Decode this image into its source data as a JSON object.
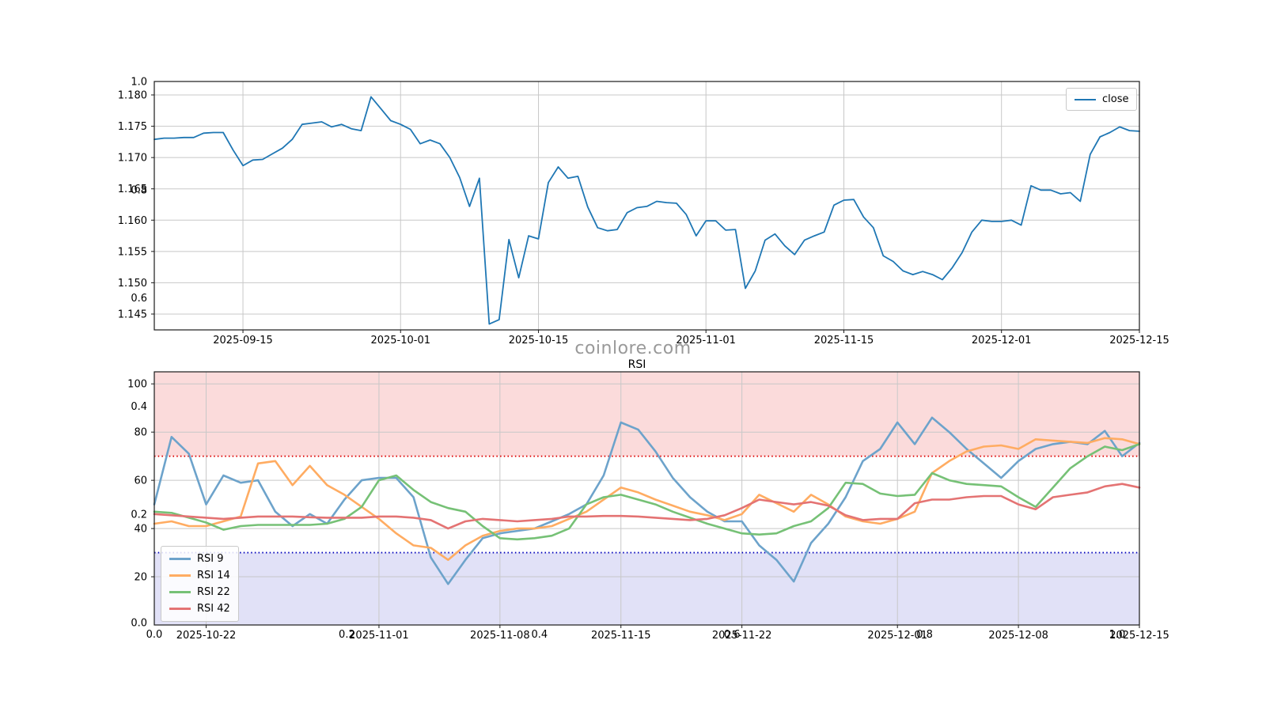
{
  "watermark": {
    "text": "coinlore.com",
    "color": "#999999"
  },
  "colors": {
    "background": "#ffffff",
    "grid": "#c8c8c8",
    "axis": "#1a1a1a",
    "close_line": "#1f77b4",
    "overbought_band": "#fbdbdb",
    "oversold_band": "#e1e1f7",
    "overbought_line": "#dd0000",
    "oversold_line": "#0000bb"
  },
  "overlay_axis": {
    "x_tick_labels": [
      "0.0",
      "0.2",
      "0.4",
      "0.6",
      "0.8",
      "1.0"
    ],
    "y_tick_labels": [
      "1.0",
      "0.8",
      "0.6",
      "0.4",
      "0.2",
      "0.0"
    ]
  },
  "chart_data": [
    {
      "type": "line",
      "title": "",
      "x_unit": "day",
      "x_start_date": "2025-09-06",
      "x_tick_labels": [
        "2025-09-15",
        "2025-10-01",
        "2025-10-15",
        "2025-11-01",
        "2025-11-15",
        "2025-12-01",
        "2025-12-15"
      ],
      "x_tick_index": [
        9,
        25,
        39,
        56,
        70,
        86,
        100
      ],
      "y_tick_values": [
        1.145,
        1.15,
        1.155,
        1.16,
        1.165,
        1.17,
        1.175,
        1.18
      ],
      "y_tick_labels": [
        "1.145",
        "1.150",
        "1.155",
        "1.160",
        "1.165",
        "1.170",
        "1.175",
        "1.180"
      ],
      "ylim": [
        1.14247,
        1.18215
      ],
      "grid": true,
      "legend_position": "upper right",
      "series": [
        {
          "name": "close",
          "color": "#1f77b4",
          "width": 1.8,
          "values": [
            1.1729,
            1.1731,
            1.1731,
            1.1732,
            1.1732,
            1.1739,
            1.174,
            1.174,
            1.1712,
            1.1687,
            1.1696,
            1.1697,
            1.1706,
            1.1715,
            1.1729,
            1.1753,
            1.1755,
            1.1757,
            1.1749,
            1.1753,
            1.1746,
            1.1743,
            1.1797,
            1.1778,
            1.1759,
            1.1753,
            1.1745,
            1.1722,
            1.1728,
            1.1722,
            1.17,
            1.1668,
            1.1622,
            1.1667,
            1.1434,
            1.1441,
            1.1569,
            1.1508,
            1.1575,
            1.157,
            1.166,
            1.1685,
            1.1667,
            1.167,
            1.1621,
            1.1588,
            1.1583,
            1.1585,
            1.1612,
            1.162,
            1.1622,
            1.163,
            1.1628,
            1.1627,
            1.1609,
            1.1575,
            1.1599,
            1.1599,
            1.1584,
            1.1585,
            1.1491,
            1.1519,
            1.1568,
            1.1578,
            1.1559,
            1.1545,
            1.1568,
            1.1575,
            1.1581,
            1.1624,
            1.1632,
            1.1633,
            1.1605,
            1.1588,
            1.1543,
            1.1534,
            1.1519,
            1.1513,
            1.1518,
            1.1513,
            1.1505,
            1.1524,
            1.1548,
            1.1581,
            1.16,
            1.1598,
            1.1598,
            1.16,
            1.1592,
            1.1655,
            1.1648,
            1.1648,
            1.1642,
            1.1644,
            1.163,
            1.1705,
            1.1733,
            1.174,
            1.1749,
            1.1743,
            1.1742
          ]
        }
      ]
    },
    {
      "type": "line",
      "title": "RSI",
      "x_unit": "day",
      "x_start_date": "2025-10-19",
      "x_tick_labels": [
        "2025-10-22",
        "2025-11-01",
        "2025-11-08",
        "2025-11-15",
        "2025-11-22",
        "2025-12-01",
        "2025-12-08",
        "2025-12-15"
      ],
      "x_tick_index": [
        3,
        13,
        20,
        27,
        34,
        43,
        50,
        57
      ],
      "y_tick_values": [
        20,
        40,
        60,
        80,
        100
      ],
      "y_tick_labels": [
        "20",
        "40",
        "60",
        "80",
        "100"
      ],
      "ylim": [
        0,
        105
      ],
      "grid": true,
      "legend_position": "lower left",
      "bands": [
        {
          "name": "overbought",
          "from": 70,
          "to": 105,
          "color": "#fbdbdb"
        },
        {
          "name": "oversold",
          "from": 0,
          "to": 30,
          "color": "#e1e1f7"
        }
      ],
      "hlines": [
        {
          "y": 70,
          "color": "#dd0000",
          "style": "dotted"
        },
        {
          "y": 30,
          "color": "#0000bb",
          "style": "dotted"
        }
      ],
      "series": [
        {
          "name": "RSI 9",
          "color": "#6da3cb",
          "width": 2.6,
          "values": [
            50,
            78,
            71,
            50,
            62,
            59,
            60,
            47,
            41,
            46,
            42,
            52,
            60,
            61,
            61,
            53,
            28,
            17,
            27,
            36,
            38,
            39,
            40,
            43,
            46,
            50,
            62,
            84,
            81,
            72,
            61,
            53,
            47,
            43,
            43,
            33,
            27,
            18,
            34,
            42,
            53,
            68,
            73,
            84,
            75,
            86,
            80,
            73,
            67,
            61,
            68,
            73,
            75,
            76,
            75,
            80.5,
            70,
            75.5
          ]
        },
        {
          "name": "RSI 14",
          "color": "#ffac62",
          "width": 2.6,
          "values": [
            42,
            43,
            41,
            41,
            43,
            45,
            67,
            68,
            58,
            66,
            58,
            54,
            49,
            44,
            38,
            33,
            32,
            27,
            33,
            37,
            39,
            40,
            40,
            41,
            44,
            47,
            52,
            57,
            55,
            52,
            49.5,
            47,
            45.5,
            43.5,
            46,
            54,
            50.5,
            47,
            54,
            50,
            45,
            43,
            42,
            44,
            47,
            63,
            68,
            72,
            74,
            74.5,
            73,
            77,
            76.5,
            76,
            75.5,
            77.5,
            77,
            75
          ]
        },
        {
          "name": "RSI 22",
          "color": "#76c176",
          "width": 2.6,
          "values": [
            47,
            46.5,
            44.5,
            42.5,
            39.5,
            41,
            41.5,
            41.5,
            41.5,
            41.5,
            42,
            44,
            49,
            60,
            62,
            56,
            51,
            48.5,
            47,
            41,
            36,
            35.5,
            36,
            37,
            40,
            50,
            53,
            54,
            52,
            50,
            47,
            44.5,
            42,
            40,
            38,
            37.5,
            38,
            41,
            43,
            48.5,
            59,
            58.5,
            54.5,
            53.5,
            54,
            63,
            60,
            58.5,
            58,
            57.5,
            53,
            49,
            57,
            65,
            70,
            74,
            72.5,
            75
          ]
        },
        {
          "name": "RSI 42",
          "color": "#e47373",
          "width": 2.6,
          "values": [
            46,
            45.5,
            45,
            44.5,
            44,
            44.5,
            45,
            45,
            45,
            44.7,
            44.5,
            44.5,
            44.5,
            45,
            45,
            44.5,
            43.5,
            40,
            43,
            44,
            43.5,
            43,
            43.5,
            44,
            45,
            45,
            45.2,
            45.2,
            45,
            44.5,
            44,
            43.5,
            44,
            45.5,
            48.5,
            52,
            51,
            50,
            51,
            49.5,
            45.5,
            43.5,
            44,
            44,
            50.5,
            52,
            52,
            53,
            53.5,
            53.5,
            50,
            48,
            53,
            54,
            55,
            57.5,
            58.5,
            57
          ]
        }
      ]
    }
  ]
}
